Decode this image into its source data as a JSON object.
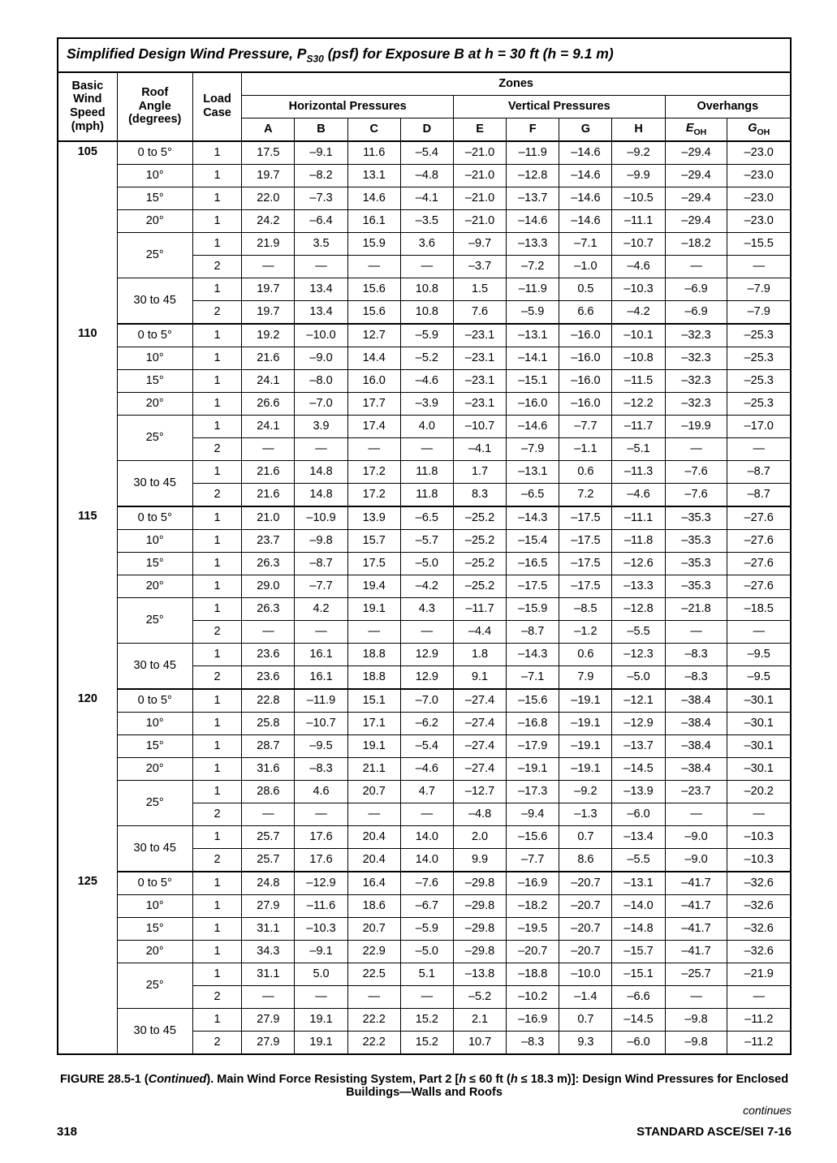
{
  "title_pre": "Simplified Design Wind Pressure, P",
  "title_sub": "S30",
  "title_post": " (psf) for Exposure B at h = 30 ft (h = 9.1 m)",
  "hdr": {
    "bws": [
      "Basic",
      "Wind",
      "Speed",
      "(mph)"
    ],
    "ra": [
      "Roof",
      "Angle",
      "(degrees)"
    ],
    "lc": [
      "Load",
      "Case"
    ],
    "zones": "Zones",
    "hp": "Horizontal Pressures",
    "vp": "Vertical Pressures",
    "ov": "Overhangs",
    "cols": [
      "A",
      "B",
      "C",
      "D",
      "E",
      "F",
      "G",
      "H"
    ],
    "eoh": "E",
    "eoh_sub": "OH",
    "goh": "G",
    "goh_sub": "OH"
  },
  "angles": [
    "0 to 5°",
    "10°",
    "15°",
    "20°",
    "25°",
    "",
    "30 to 45",
    ""
  ],
  "loadcases": [
    "1",
    "1",
    "1",
    "1",
    "1",
    "2",
    "1",
    "2"
  ],
  "blocks": [
    {
      "speed": "105",
      "rows": [
        [
          "17.5",
          "–9.1",
          "11.6",
          "–5.4",
          "–21.0",
          "–11.9",
          "–14.6",
          "–9.2",
          "–29.4",
          "–23.0"
        ],
        [
          "19.7",
          "–8.2",
          "13.1",
          "–4.8",
          "–21.0",
          "–12.8",
          "–14.6",
          "–9.9",
          "–29.4",
          "–23.0"
        ],
        [
          "22.0",
          "–7.3",
          "14.6",
          "–4.1",
          "–21.0",
          "–13.7",
          "–14.6",
          "–10.5",
          "–29.4",
          "–23.0"
        ],
        [
          "24.2",
          "–6.4",
          "16.1",
          "–3.5",
          "–21.0",
          "–14.6",
          "–14.6",
          "–11.1",
          "–29.4",
          "–23.0"
        ],
        [
          "21.9",
          "3.5",
          "15.9",
          "3.6",
          "–9.7",
          "–13.3",
          "–7.1",
          "–10.7",
          "–18.2",
          "–15.5"
        ],
        [
          "—",
          "—",
          "—",
          "—",
          "–3.7",
          "–7.2",
          "–1.0",
          "–4.6",
          "—",
          "—"
        ],
        [
          "19.7",
          "13.4",
          "15.6",
          "10.8",
          "1.5",
          "–11.9",
          "0.5",
          "–10.3",
          "–6.9",
          "–7.9"
        ],
        [
          "19.7",
          "13.4",
          "15.6",
          "10.8",
          "7.6",
          "–5.9",
          "6.6",
          "–4.2",
          "–6.9",
          "–7.9"
        ]
      ]
    },
    {
      "speed": "110",
      "rows": [
        [
          "19.2",
          "–10.0",
          "12.7",
          "–5.9",
          "–23.1",
          "–13.1",
          "–16.0",
          "–10.1",
          "–32.3",
          "–25.3"
        ],
        [
          "21.6",
          "–9.0",
          "14.4",
          "–5.2",
          "–23.1",
          "–14.1",
          "–16.0",
          "–10.8",
          "–32.3",
          "–25.3"
        ],
        [
          "24.1",
          "–8.0",
          "16.0",
          "–4.6",
          "–23.1",
          "–15.1",
          "–16.0",
          "–11.5",
          "–32.3",
          "–25.3"
        ],
        [
          "26.6",
          "–7.0",
          "17.7",
          "–3.9",
          "–23.1",
          "–16.0",
          "–16.0",
          "–12.2",
          "–32.3",
          "–25.3"
        ],
        [
          "24.1",
          "3.9",
          "17.4",
          "4.0",
          "–10.7",
          "–14.6",
          "–7.7",
          "–11.7",
          "–19.9",
          "–17.0"
        ],
        [
          "—",
          "—",
          "—",
          "—",
          "–4.1",
          "–7.9",
          "–1.1",
          "–5.1",
          "—",
          "—"
        ],
        [
          "21.6",
          "14.8",
          "17.2",
          "11.8",
          "1.7",
          "–13.1",
          "0.6",
          "–11.3",
          "–7.6",
          "–8.7"
        ],
        [
          "21.6",
          "14.8",
          "17.2",
          "11.8",
          "8.3",
          "–6.5",
          "7.2",
          "–4.6",
          "–7.6",
          "–8.7"
        ]
      ]
    },
    {
      "speed": "115",
      "rows": [
        [
          "21.0",
          "–10.9",
          "13.9",
          "–6.5",
          "–25.2",
          "–14.3",
          "–17.5",
          "–11.1",
          "–35.3",
          "–27.6"
        ],
        [
          "23.7",
          "–9.8",
          "15.7",
          "–5.7",
          "–25.2",
          "–15.4",
          "–17.5",
          "–11.8",
          "–35.3",
          "–27.6"
        ],
        [
          "26.3",
          "–8.7",
          "17.5",
          "–5.0",
          "–25.2",
          "–16.5",
          "–17.5",
          "–12.6",
          "–35.3",
          "–27.6"
        ],
        [
          "29.0",
          "–7.7",
          "19.4",
          "–4.2",
          "–25.2",
          "–17.5",
          "–17.5",
          "–13.3",
          "–35.3",
          "–27.6"
        ],
        [
          "26.3",
          "4.2",
          "19.1",
          "4.3",
          "–11.7",
          "–15.9",
          "–8.5",
          "–12.8",
          "–21.8",
          "–18.5"
        ],
        [
          "—",
          "—",
          "—",
          "—",
          "–4.4",
          "–8.7",
          "–1.2",
          "–5.5",
          "—",
          "—"
        ],
        [
          "23.6",
          "16.1",
          "18.8",
          "12.9",
          "1.8",
          "–14.3",
          "0.6",
          "–12.3",
          "–8.3",
          "–9.5"
        ],
        [
          "23.6",
          "16.1",
          "18.8",
          "12.9",
          "9.1",
          "–7.1",
          "7.9",
          "–5.0",
          "–8.3",
          "–9.5"
        ]
      ]
    },
    {
      "speed": "120",
      "rows": [
        [
          "22.8",
          "–11.9",
          "15.1",
          "–7.0",
          "–27.4",
          "–15.6",
          "–19.1",
          "–12.1",
          "–38.4",
          "–30.1"
        ],
        [
          "25.8",
          "–10.7",
          "17.1",
          "–6.2",
          "–27.4",
          "–16.8",
          "–19.1",
          "–12.9",
          "–38.4",
          "–30.1"
        ],
        [
          "28.7",
          "–9.5",
          "19.1",
          "–5.4",
          "–27.4",
          "–17.9",
          "–19.1",
          "–13.7",
          "–38.4",
          "–30.1"
        ],
        [
          "31.6",
          "–8.3",
          "21.1",
          "–4.6",
          "–27.4",
          "–19.1",
          "–19.1",
          "–14.5",
          "–38.4",
          "–30.1"
        ],
        [
          "28.6",
          "4.6",
          "20.7",
          "4.7",
          "–12.7",
          "–17.3",
          "–9.2",
          "–13.9",
          "–23.7",
          "–20.2"
        ],
        [
          "—",
          "—",
          "—",
          "—",
          "–4.8",
          "–9.4",
          "–1.3",
          "–6.0",
          "—",
          "—"
        ],
        [
          "25.7",
          "17.6",
          "20.4",
          "14.0",
          "2.0",
          "–15.6",
          "0.7",
          "–13.4",
          "–9.0",
          "–10.3"
        ],
        [
          "25.7",
          "17.6",
          "20.4",
          "14.0",
          "9.9",
          "–7.7",
          "8.6",
          "–5.5",
          "–9.0",
          "–10.3"
        ]
      ]
    },
    {
      "speed": "125",
      "rows": [
        [
          "24.8",
          "–12.9",
          "16.4",
          "–7.6",
          "–29.8",
          "–16.9",
          "–20.7",
          "–13.1",
          "–41.7",
          "–32.6"
        ],
        [
          "27.9",
          "–11.6",
          "18.6",
          "–6.7",
          "–29.8",
          "–18.2",
          "–20.7",
          "–14.0",
          "–41.7",
          "–32.6"
        ],
        [
          "31.1",
          "–10.3",
          "20.7",
          "–5.9",
          "–29.8",
          "–19.5",
          "–20.7",
          "–14.8",
          "–41.7",
          "–32.6"
        ],
        [
          "34.3",
          "–9.1",
          "22.9",
          "–5.0",
          "–29.8",
          "–20.7",
          "–20.7",
          "–15.7",
          "–41.7",
          "–32.6"
        ],
        [
          "31.1",
          "5.0",
          "22.5",
          "5.1",
          "–13.8",
          "–18.8",
          "–10.0",
          "–15.1",
          "–25.7",
          "–21.9"
        ],
        [
          "—",
          "—",
          "—",
          "—",
          "–5.2",
          "–10.2",
          "–1.4",
          "–6.6",
          "—",
          "—"
        ],
        [
          "27.9",
          "19.1",
          "22.2",
          "15.2",
          "2.1",
          "–16.9",
          "0.7",
          "–14.5",
          "–9.8",
          "–11.2"
        ],
        [
          "27.9",
          "19.1",
          "22.2",
          "15.2",
          "10.7",
          "–8.3",
          "9.3",
          "–6.0",
          "–9.8",
          "–11.2"
        ]
      ]
    }
  ],
  "figcap_a": "FIGURE 28.5-1 (",
  "figcap_b": "Continued",
  "figcap_c": "). Main Wind Force Resisting System, Part 2 [",
  "figcap_d": "h",
  "figcap_e": " ≤ 60 ft (",
  "figcap_f": "h",
  "figcap_g": " ≤ 18.3 m)]: Design Wind Pressures for Enclosed Buildings—Walls and Roofs",
  "continues": "continues",
  "pageno": "318",
  "std": "STANDARD ASCE/SEI 7-16"
}
